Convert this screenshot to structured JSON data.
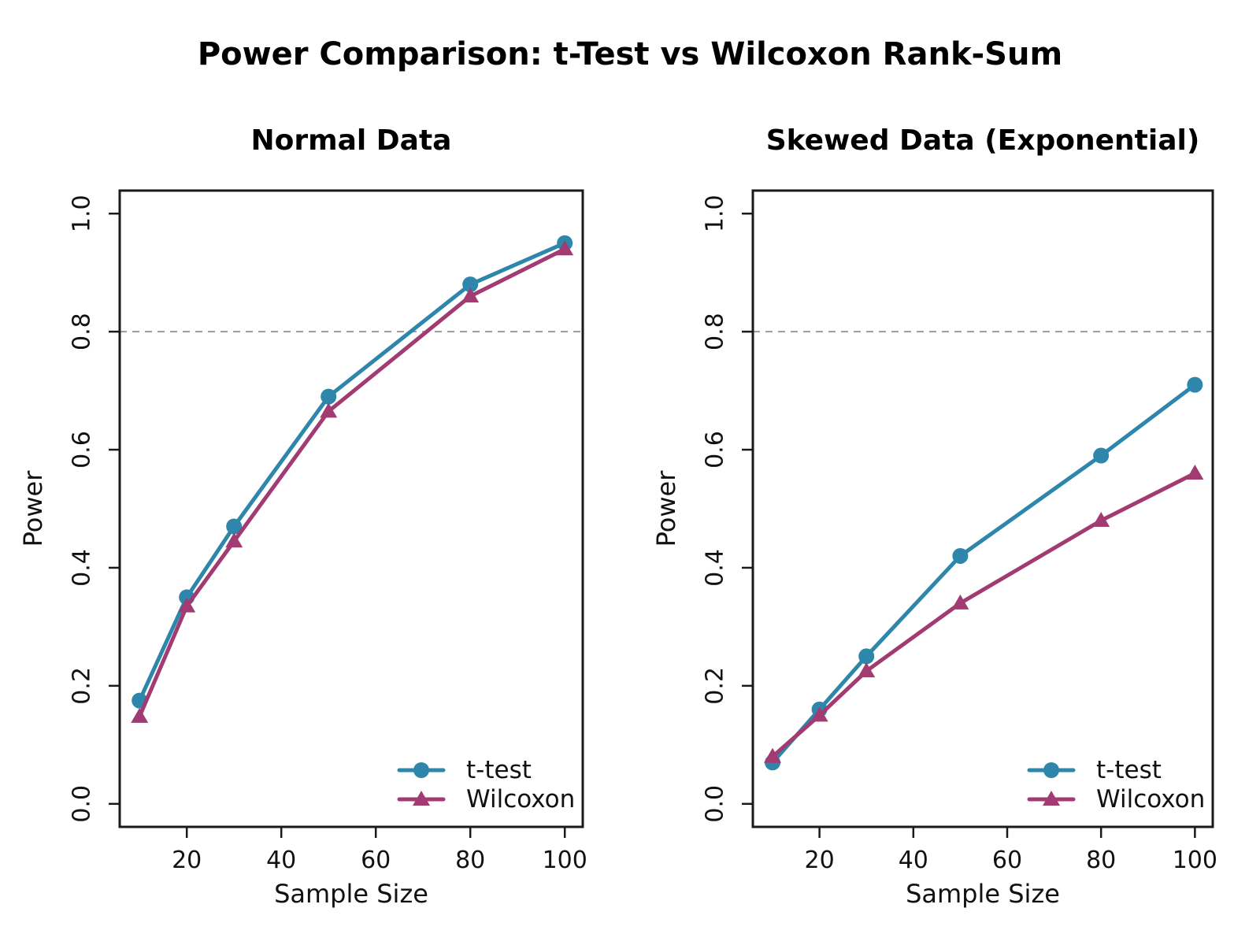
{
  "suptitle": "Power Comparison: t-Test vs Wilcoxon Rank-Sum",
  "colors": {
    "t_test": "#2E86AB",
    "wilcoxon": "#A23B72",
    "reference_line": "#999999",
    "axis": "#1a1a1a"
  },
  "chart_data": [
    {
      "type": "line",
      "title": "Normal Data",
      "xlabel": "Sample Size",
      "ylabel": "Power",
      "x": [
        10,
        20,
        30,
        50,
        80,
        100
      ],
      "x_ticks": [
        20,
        40,
        60,
        80,
        100
      ],
      "y_ticks": [
        "0.0",
        "0.2",
        "0.4",
        "0.6",
        "0.8",
        "1.0"
      ],
      "xlim": [
        5.8,
        103.8
      ],
      "ylim": [
        -0.039,
        1.039
      ],
      "grid": false,
      "reference_line_y": 0.8,
      "legend_position": "lower right",
      "series": [
        {
          "name": "t-test",
          "marker": "circle",
          "color": "#2E86AB",
          "values": [
            0.175,
            0.35,
            0.47,
            0.69,
            0.88,
            0.95
          ]
        },
        {
          "name": "Wilcoxon",
          "marker": "triangle",
          "color": "#A23B72",
          "values": [
            0.148,
            0.335,
            0.445,
            0.665,
            0.86,
            0.94
          ]
        }
      ]
    },
    {
      "type": "line",
      "title": "Skewed Data (Exponential)",
      "xlabel": "Sample Size",
      "ylabel": "Power",
      "x": [
        10,
        20,
        30,
        50,
        80,
        100
      ],
      "x_ticks": [
        20,
        40,
        60,
        80,
        100
      ],
      "y_ticks": [
        "0.0",
        "0.2",
        "0.4",
        "0.6",
        "0.8",
        "1.0"
      ],
      "xlim": [
        5.8,
        103.8
      ],
      "ylim": [
        -0.039,
        1.039
      ],
      "grid": false,
      "reference_line_y": 0.8,
      "legend_position": "lower right",
      "series": [
        {
          "name": "t-test",
          "marker": "circle",
          "color": "#2E86AB",
          "values": [
            0.07,
            0.16,
            0.25,
            0.42,
            0.59,
            0.71
          ]
        },
        {
          "name": "Wilcoxon",
          "marker": "triangle",
          "color": "#A23B72",
          "values": [
            0.08,
            0.15,
            0.225,
            0.34,
            0.48,
            0.56
          ]
        }
      ]
    }
  ]
}
